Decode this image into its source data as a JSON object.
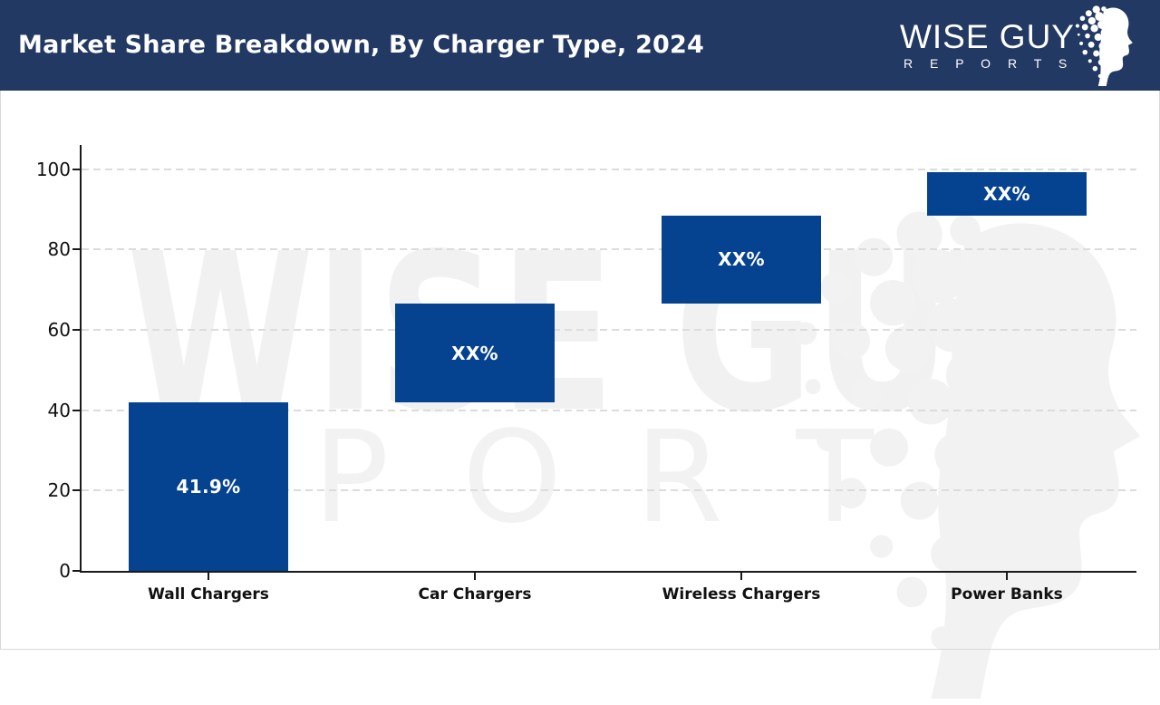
{
  "header": {
    "title": "Market Share Breakdown, By Charger Type, 2024",
    "bg_color": "#223963",
    "logo": {
      "line1": "WISE GUY",
      "line2": "R E P O R T S",
      "mark": "dotted-head-profile"
    }
  },
  "watermark": {
    "line1": "WISE GUY",
    "line2": "P O R T S"
  },
  "chart_data": {
    "type": "bar",
    "subtype": "floating-segment-waterfall",
    "title": "Market Share Breakdown, By Charger Type, 2024",
    "categories": [
      "Wall Chargers",
      "Car Chargers",
      "Wireless Chargers",
      "Power Banks"
    ],
    "series": [
      {
        "name": "Market share by charger type",
        "segments": [
          {
            "category": "Wall Chargers",
            "from": 0,
            "to": 41.9,
            "label": "41.9%"
          },
          {
            "category": "Car Chargers",
            "from": 41.9,
            "to": 66.5,
            "label": "XX%"
          },
          {
            "category": "Wireless Chargers",
            "from": 66.5,
            "to": 88.5,
            "label": "XX%"
          },
          {
            "category": "Power Banks",
            "from": 88.5,
            "to": 99.2,
            "label": "XX%"
          }
        ]
      }
    ],
    "xlabel": "",
    "ylabel": "",
    "yticks": [
      0,
      20,
      40,
      60,
      80,
      100
    ],
    "ylim": [
      0,
      106
    ],
    "grid": "horizontal-dashed",
    "legend": "none",
    "bar_color": "#05428f",
    "bar_label_color": "#ffffff",
    "axis_color": "#1a1a1a",
    "gridline_color": "#dcdcdc"
  }
}
